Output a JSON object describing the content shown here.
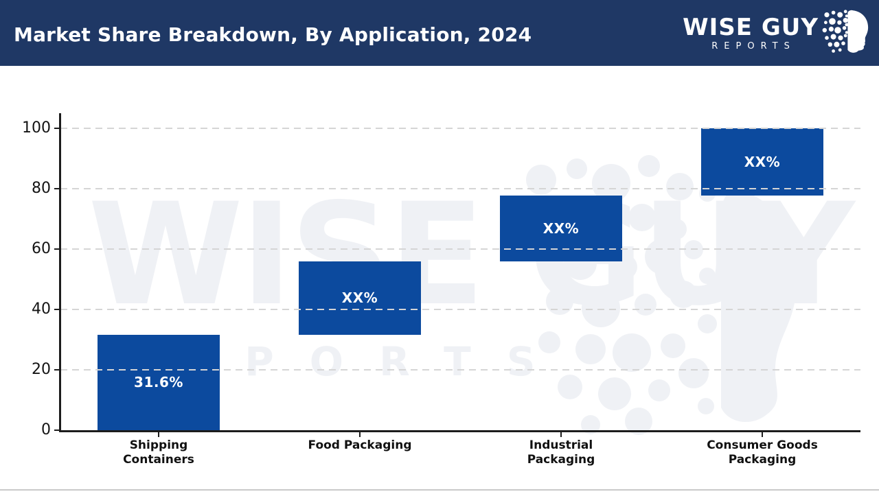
{
  "header": {
    "title": "Market Share Breakdown, By Application, 2024",
    "logo": {
      "name": "WISE GUY",
      "sub": "REPORTS"
    }
  },
  "watermark": {
    "line1": "WISE GUY",
    "line2": "REPORTS"
  },
  "colors": {
    "header_bg": "#1f3865",
    "bar_blue": "#0c4a9e",
    "bar_label": "#ffffff",
    "watermark_gray": "#eff1f5",
    "grid_gray": "#d5d5d5",
    "axis_black": "#1c1c1c"
  },
  "chart_data": {
    "type": "bar",
    "subtype": "waterfall",
    "title": "Market Share Breakdown, By Application, 2024",
    "categories": [
      "Shipping Containers",
      "Food Packaging",
      "Industrial Packaging",
      "Consumer Goods Packaging"
    ],
    "segments": [
      {
        "category": "Shipping Containers",
        "category_lines": [
          "Shipping",
          "Containers"
        ],
        "start": 0,
        "end": 31.6,
        "label": "31.6%"
      },
      {
        "category": "Food Packaging",
        "category_lines": [
          "Food Packaging"
        ],
        "start": 31.6,
        "end": 55.9,
        "label": "XX%"
      },
      {
        "category": "Industrial Packaging",
        "category_lines": [
          "Industrial",
          "Packaging"
        ],
        "start": 55.9,
        "end": 77.7,
        "label": "XX%"
      },
      {
        "category": "Consumer Goods Packaging",
        "category_lines": [
          "Consumer Goods",
          "Packaging"
        ],
        "start": 77.7,
        "end": 100,
        "label": "XX%"
      }
    ],
    "ylim": [
      0,
      100
    ],
    "yticks": [
      "0",
      "20",
      "40",
      "60",
      "80",
      "100"
    ],
    "xlabel": "",
    "ylabel": "",
    "grid": "horizontal-dashed",
    "legend": "none",
    "bar_color": "#0c4a9e",
    "value_label_color": "#ffffff"
  }
}
